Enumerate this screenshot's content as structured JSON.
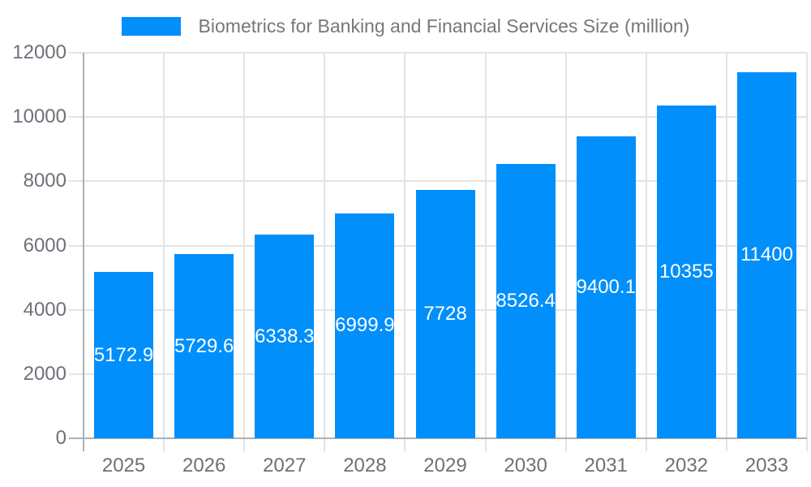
{
  "chart_data": {
    "type": "bar",
    "title": "Biometrics for Banking and Financial Services Size (million)",
    "categories": [
      "2025",
      "2026",
      "2027",
      "2028",
      "2029",
      "2030",
      "2031",
      "2032",
      "2033"
    ],
    "values": [
      5172.9,
      5729.6,
      6338.3,
      6999.9,
      7728,
      8526.4,
      9400.1,
      10355,
      11400
    ],
    "data_labels": [
      "5172.9",
      "5729.6",
      "6338.3",
      "6999.9",
      "7728",
      "8526.4",
      "9400.1",
      "10355",
      "11400"
    ],
    "ylabel": "",
    "xlabel": "",
    "ylim": [
      0,
      12000
    ],
    "ytick_step": 2000,
    "ytick_labels": [
      "0",
      "2000",
      "4000",
      "6000",
      "8000",
      "10000",
      "12000"
    ],
    "legend_position": "top",
    "grid": "horizontal and vertical gridlines on",
    "colors": {
      "bar": "#008FFB",
      "grid": "#e3e3e3",
      "axis": "#b0b0b0",
      "axis_label": "#6e7079",
      "legend_text": "#75787b",
      "data_label": "#ffffff",
      "background": "#ffffff"
    }
  }
}
